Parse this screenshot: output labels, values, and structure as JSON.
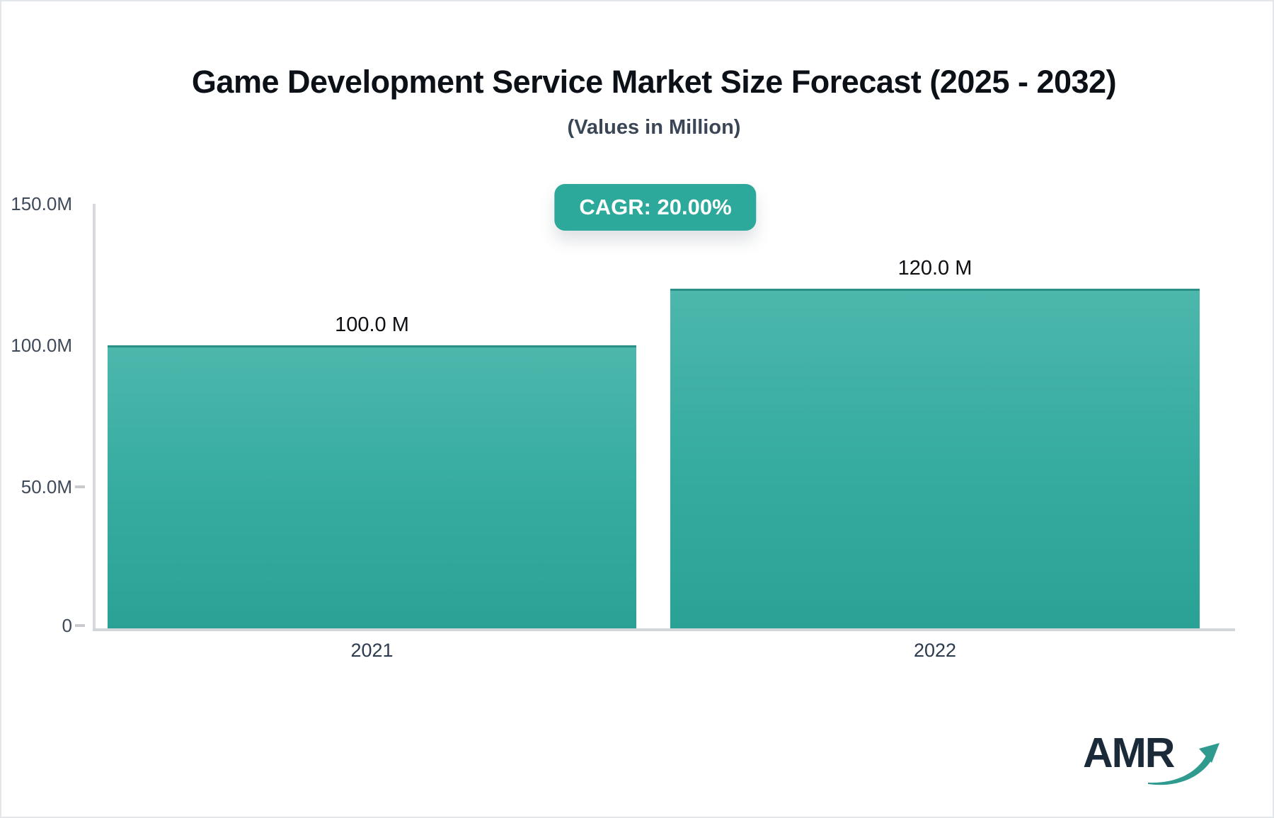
{
  "header": {
    "title": "Game Development Service Market Size Forecast (2025 - 2032)",
    "subtitle": "(Values in Million)"
  },
  "badge": {
    "label": "CAGR: 20.00%",
    "background_color": "#2da99c",
    "text_color": "#ffffff"
  },
  "logo": {
    "text": "AMR",
    "text_color": "#1b2a38",
    "arrow_color": "#2f9a8e",
    "arrow_icon": "trend-up-arrow"
  },
  "chart_data": {
    "type": "bar",
    "title": "Game Development Service Market Size Forecast (2025 - 2032)",
    "subtitle": "(Values in Million)",
    "unit": "Million",
    "cagr_percent": 20.0,
    "categories": [
      "2021",
      "2022"
    ],
    "values": [
      100.0,
      120.0
    ],
    "value_labels": [
      "100.0 M",
      "120.0 M"
    ],
    "ylim": [
      0,
      150
    ],
    "y_ticks": [
      {
        "label": "150.0M",
        "value": 150
      },
      {
        "label": "100.0M",
        "value": 100
      },
      {
        "label": "50.0M",
        "value": 50
      },
      {
        "label": "0",
        "value": 0
      }
    ],
    "grid": false,
    "legend": false,
    "bar_color_top": "#4db7ac",
    "bar_color_bottom": "#29a295",
    "bar_top_border_color": "#2b9187",
    "axis_color": "#d6d9dd"
  }
}
